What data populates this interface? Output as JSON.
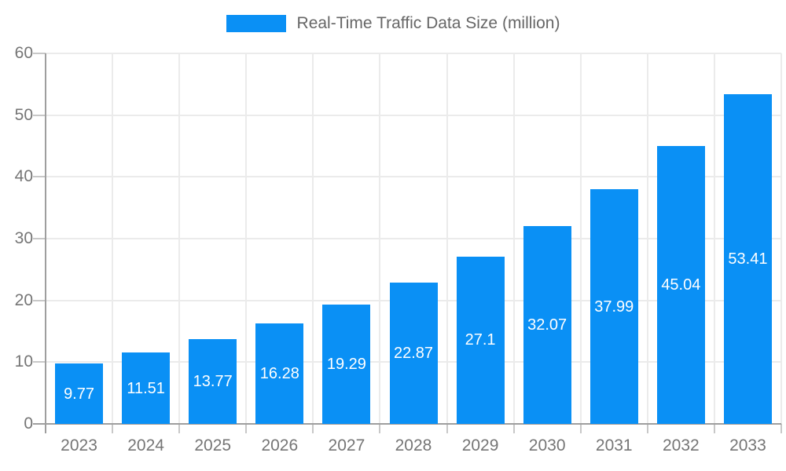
{
  "legend": {
    "label": "Real-Time Traffic Data Size (million)"
  },
  "colors": {
    "bar": "#0a90f5",
    "legend_text": "#666666",
    "axis_text": "#757575",
    "grid": "#ebebeb",
    "axis_line": "#9e9e9e",
    "tick_mark": "#c8c8c8",
    "value_label": "#ffffff",
    "background": "#ffffff"
  },
  "chart_data": {
    "type": "bar",
    "title": "Real-Time Traffic Data Size (million)",
    "legend": [
      "Real-Time Traffic Data Size (million)"
    ],
    "legend_position": "top",
    "categories": [
      "2023",
      "2024",
      "2025",
      "2026",
      "2027",
      "2028",
      "2029",
      "2030",
      "2031",
      "2032",
      "2033"
    ],
    "values": [
      9.77,
      11.51,
      13.77,
      16.28,
      19.29,
      22.87,
      27.1,
      32.07,
      37.99,
      45.04,
      53.41
    ],
    "value_labels": [
      "9.77",
      "11.51",
      "13.77",
      "16.28",
      "19.29",
      "22.87",
      "27.1",
      "32.07",
      "37.99",
      "45.04",
      "53.41"
    ],
    "xlabel": "",
    "ylabel": "",
    "ylim": [
      0,
      60
    ],
    "yticks": [
      0,
      10,
      20,
      30,
      40,
      50,
      60
    ],
    "grid": true,
    "bar_color": "#0a90f5",
    "value_label_color": "#ffffff"
  }
}
